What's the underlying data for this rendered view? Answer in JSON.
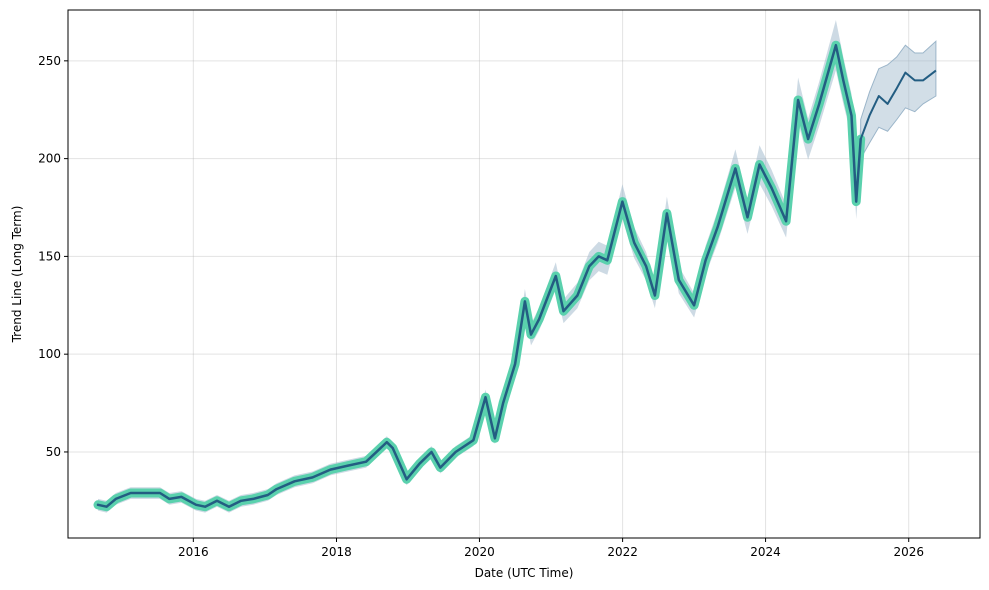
{
  "chart_data": {
    "type": "line",
    "title": "",
    "xlabel": "Date (UTC Time)",
    "ylabel": "Trend Line (Long Term)",
    "xlim": [
      "2014-04-01",
      "2026-12-31"
    ],
    "ylim": [
      6,
      276
    ],
    "x_ticks": [
      "2016",
      "2018",
      "2020",
      "2022",
      "2024",
      "2026"
    ],
    "y_ticks": [
      50,
      100,
      150,
      200,
      250
    ],
    "grid": true,
    "legend": "none",
    "colors": {
      "historical_band": "#5ad1ad",
      "trend_line": "#235d82",
      "confidence_band": "#9bb5c9"
    },
    "series": [
      {
        "kind": "historical",
        "x": [
          "2014-09-01",
          "2014-10-15",
          "2014-12-01",
          "2015-02-15",
          "2015-05-01",
          "2015-07-15",
          "2015-09-01",
          "2015-11-01",
          "2016-01-15",
          "2016-03-01",
          "2016-05-01",
          "2016-07-01",
          "2016-09-01",
          "2016-11-01",
          "2017-01-15",
          "2017-03-01",
          "2017-06-01",
          "2017-09-01",
          "2017-12-01",
          "2018-03-01",
          "2018-06-01",
          "2018-09-15",
          "2018-10-15",
          "2018-12-25",
          "2019-03-01",
          "2019-05-01",
          "2019-06-15",
          "2019-09-01",
          "2019-12-01",
          "2020-02-01",
          "2020-03-20",
          "2020-05-01",
          "2020-07-01",
          "2020-08-20",
          "2020-09-20",
          "2020-11-01",
          "2021-01-25",
          "2021-03-05",
          "2021-05-15",
          "2021-07-15",
          "2021-09-01",
          "2021-10-15",
          "2021-12-31",
          "2022-03-01",
          "2022-05-01",
          "2022-06-15",
          "2022-08-15",
          "2022-10-15",
          "2023-01-01",
          "2023-03-01",
          "2023-05-01",
          "2023-07-31",
          "2023-10-01",
          "2023-12-01",
          "2024-02-01",
          "2024-04-15",
          "2024-06-15",
          "2024-08-05",
          "2024-10-01",
          "2024-12-25",
          "2025-02-01",
          "2025-03-15",
          "2025-04-08",
          "2025-05-01"
        ],
        "y": [
          23,
          22,
          26,
          29,
          29,
          29,
          26,
          27,
          23,
          22,
          25,
          22,
          25,
          26,
          28,
          31,
          35,
          37,
          41,
          43,
          45,
          55,
          52,
          36,
          44,
          50,
          42,
          50,
          56,
          78,
          57,
          75,
          95,
          127,
          110,
          118,
          140,
          122,
          130,
          145,
          150,
          148,
          178,
          157,
          145,
          130,
          172,
          138,
          125,
          148,
          165,
          195,
          170,
          197,
          185,
          168,
          230,
          210,
          228,
          258,
          240,
          222,
          178,
          210
        ]
      },
      {
        "kind": "forecast",
        "x": [
          "2025-05-01",
          "2025-06-15",
          "2025-08-01",
          "2025-09-15",
          "2025-11-01",
          "2025-12-15",
          "2026-02-01",
          "2026-03-15",
          "2026-05-20"
        ],
        "y": [
          210,
          222,
          232,
          228,
          236,
          244,
          240,
          240,
          245
        ],
        "lower": [
          200,
          208,
          216,
          214,
          220,
          226,
          224,
          228,
          232
        ],
        "upper": [
          220,
          234,
          246,
          248,
          252,
          258,
          254,
          254,
          260
        ]
      }
    ]
  }
}
